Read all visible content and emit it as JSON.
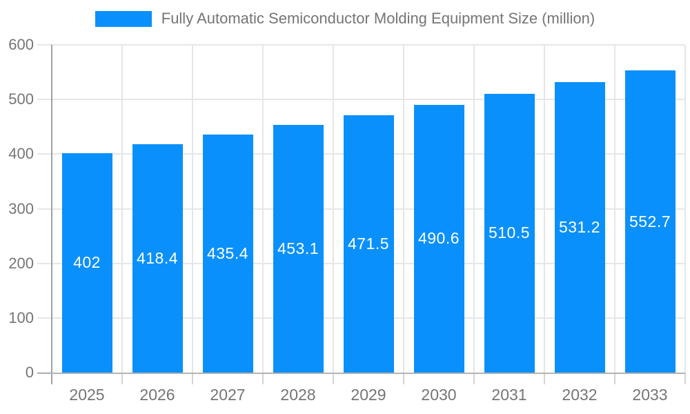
{
  "legend": {
    "label": "Fully Automatic Semiconductor Molding Equipment Size (million)"
  },
  "chart_data": {
    "type": "bar",
    "title": "Fully Automatic Semiconductor Molding Equipment Size (million)",
    "xlabel": "",
    "ylabel": "",
    "categories": [
      "2025",
      "2026",
      "2027",
      "2028",
      "2029",
      "2030",
      "2031",
      "2032",
      "2033"
    ],
    "values": [
      402,
      418.4,
      435.4,
      453.1,
      471.5,
      490.6,
      510.5,
      531.2,
      552.7
    ],
    "value_labels": [
      "402",
      "418.4",
      "435.4",
      "453.1",
      "471.5",
      "490.6",
      "510.5",
      "531.2",
      "552.7"
    ],
    "ylim": [
      0,
      600
    ],
    "yticks": [
      0,
      100,
      200,
      300,
      400,
      500,
      600
    ],
    "grid": true,
    "legend_position": "top",
    "colors": {
      "bar": "#0a90fa",
      "bar_label": "#ffffff",
      "axis_text": "#757575",
      "grid_line": "#e6e6e6",
      "x_axis_line": "#b3b3b3",
      "y_axis_line": "#a0a0a0",
      "tick_line": "#d4d4d4"
    }
  }
}
